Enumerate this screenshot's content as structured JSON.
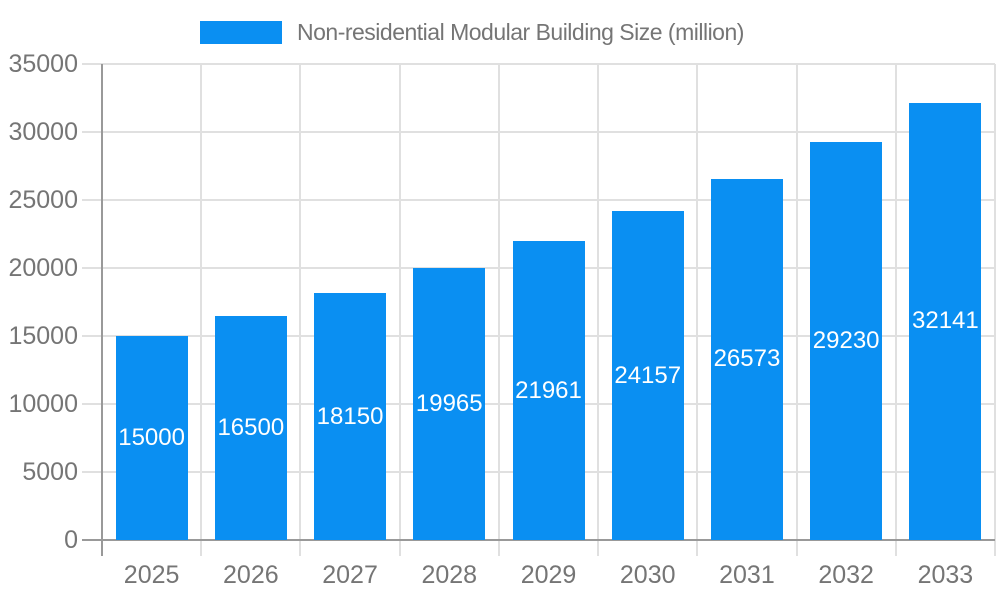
{
  "chart_data": {
    "type": "bar",
    "title": "Non-residential Modular Building Size (million)",
    "legend": {
      "label": "Non-residential Modular Building Size (million)",
      "position": "top"
    },
    "categories": [
      "2025",
      "2026",
      "2027",
      "2028",
      "2029",
      "2030",
      "2031",
      "2032",
      "2033"
    ],
    "series": [
      {
        "name": "Non-residential Modular Building Size (million)",
        "values": [
          15000,
          16500,
          18150,
          19965,
          21961,
          24157,
          26573,
          29230,
          32141
        ]
      }
    ],
    "xlabel": "",
    "ylabel": "",
    "ylim": [
      0,
      35000
    ],
    "yticks": [
      0,
      5000,
      10000,
      15000,
      20000,
      25000,
      30000,
      35000
    ],
    "grid": true,
    "bar_labels_visible": true,
    "colors": {
      "bar": "#0A8FF2",
      "bar_label": "#FFFFFF",
      "grid": "#E0E0E0",
      "axis": "#999999",
      "tick_text": "#757575",
      "legend_text": "#757575",
      "background": "#FFFFFF"
    }
  }
}
